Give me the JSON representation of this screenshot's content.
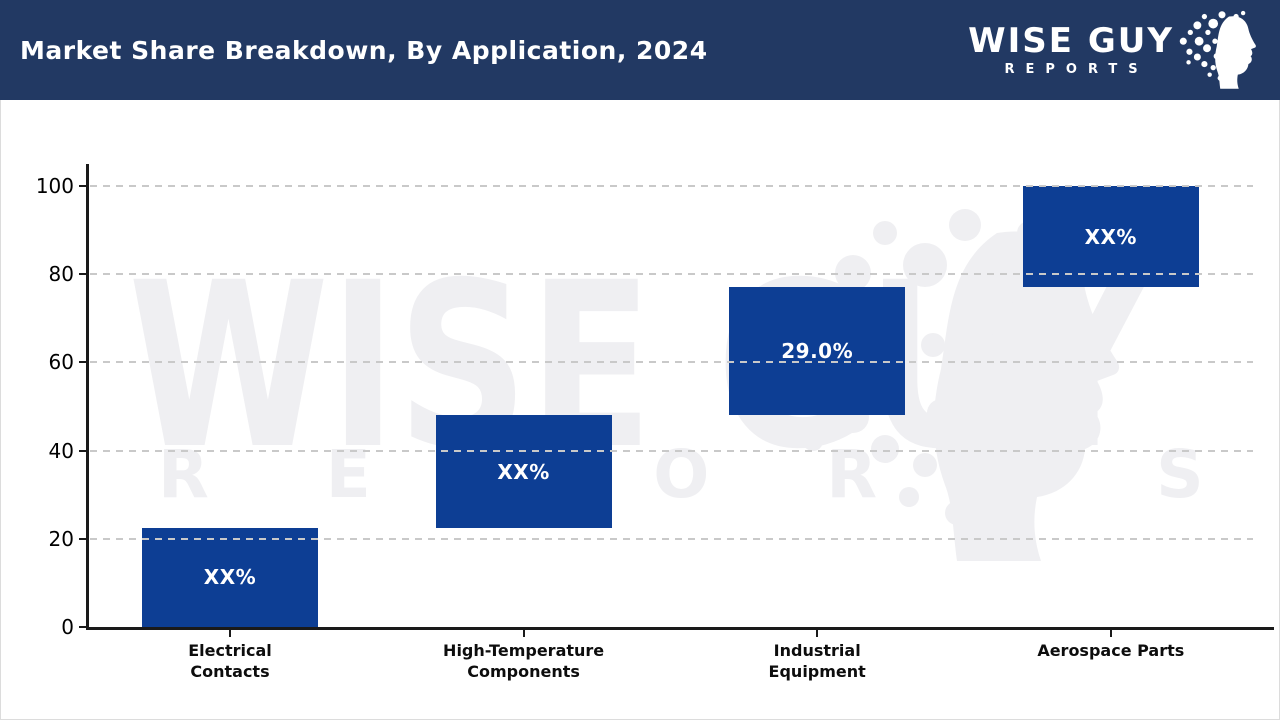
{
  "header": {
    "title": "Market Share Breakdown, By Application, 2024",
    "logo": {
      "line1": "WISE GUY",
      "line2": "REPORTS"
    }
  },
  "watermark": {
    "line1": "WISE GUY",
    "line2": "R E P O R T S"
  },
  "colors": {
    "header_bg": "#223963",
    "bar": "#0d3e94",
    "grid": "#c9c9c9",
    "axis": "#1a1a1a",
    "watermark": "#efeff2"
  },
  "chart_data": {
    "type": "bar",
    "subtype": "waterfall-floating-segments",
    "title": "Market Share Breakdown, By Application, 2024",
    "categories": [
      "Electrical\nContacts",
      "High-Temperature\nComponents",
      "Industrial\nEquipment",
      "Aerospace Parts"
    ],
    "bars": [
      {
        "category": "Electrical Contacts",
        "label": "XX%",
        "start": 0,
        "end": 22.5
      },
      {
        "category": "High-Temperature Components",
        "label": "XX%",
        "start": 22.5,
        "end": 48
      },
      {
        "category": "Industrial Equipment",
        "label": "29.0%",
        "start": 48,
        "end": 77
      },
      {
        "category": "Aerospace Parts",
        "label": "XX%",
        "start": 77,
        "end": 100
      }
    ],
    "yticks": [
      0,
      20,
      40,
      60,
      80,
      100
    ],
    "ylim": [
      0,
      105
    ],
    "xlabel": "",
    "ylabel": "",
    "grid": "horizontal-dashed-over-bars",
    "legend": "none"
  }
}
